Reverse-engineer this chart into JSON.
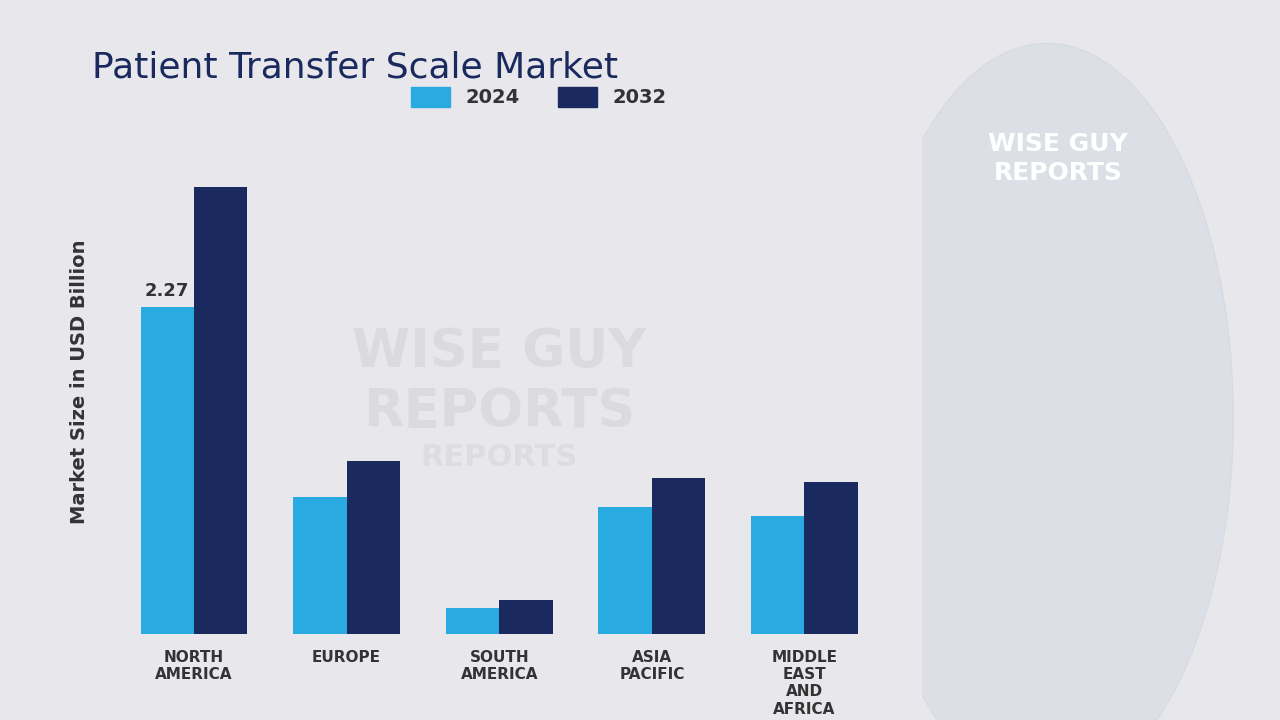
{
  "title": "Patient Transfer Scale Market",
  "ylabel": "Market Size in USD Billion",
  "categories": [
    "NORTH\nAMERICA",
    "EUROPE",
    "SOUTH\nAMERICA",
    "ASIA\nPACIFIC",
    "MIDDLE\nEAST\nAND\nAFRICA"
  ],
  "values_2024": [
    2.27,
    0.95,
    0.18,
    0.88,
    0.82
  ],
  "values_2032": [
    3.1,
    1.2,
    0.23,
    1.08,
    1.05
  ],
  "bar_color_2024": "#29ABE2",
  "bar_color_2032": "#1B2A5E",
  "annotation_value": "2.27",
  "annotation_category_idx": 0,
  "legend_labels": [
    "2024",
    "2032"
  ],
  "background_color": "#E8E8EC",
  "right_panel_color": "#1B2A5E",
  "title_color": "#1B2A5E",
  "bar_width": 0.35,
  "ylim": [
    0,
    3.5
  ],
  "title_fontsize": 26,
  "axis_label_fontsize": 14,
  "tick_label_fontsize": 11,
  "legend_fontsize": 14,
  "annotation_fontsize": 13
}
